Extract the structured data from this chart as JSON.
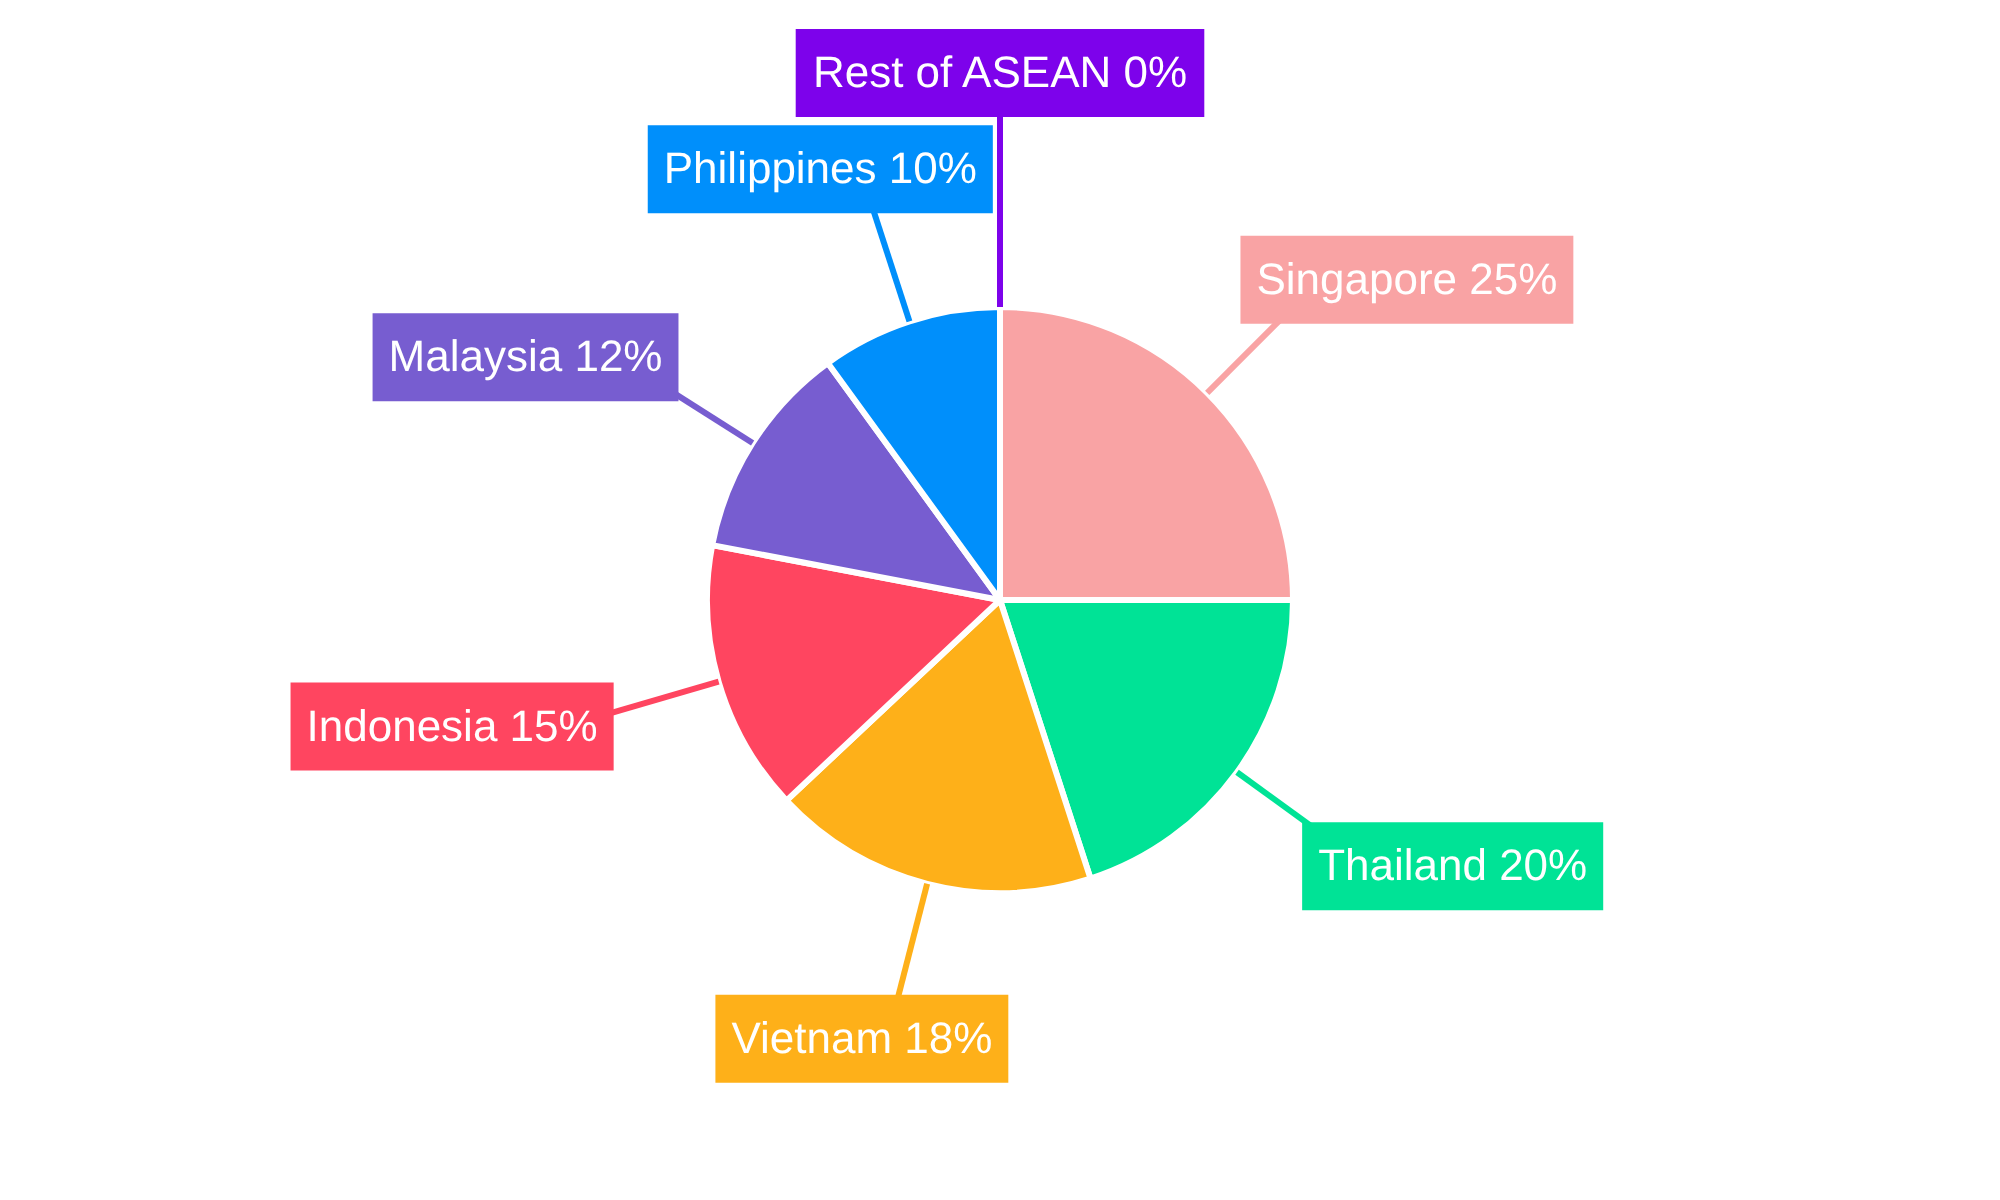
{
  "chart_data": {
    "type": "pie",
    "categories": [
      "Singapore",
      "Thailand",
      "Vietnam",
      "Indonesia",
      "Malaysia",
      "Philippines",
      "Rest of ASEAN"
    ],
    "values": [
      25,
      20,
      18,
      15,
      12,
      10,
      0
    ],
    "value_labels": [
      "25%",
      "20%",
      "18%",
      "15%",
      "12%",
      "10%",
      "0%"
    ],
    "colors": [
      "#f9a3a4",
      "#00e396",
      "#feb019",
      "#ff4560",
      "#775dd0",
      "#008ffb",
      "#7d02eb"
    ],
    "legend": false
  }
}
